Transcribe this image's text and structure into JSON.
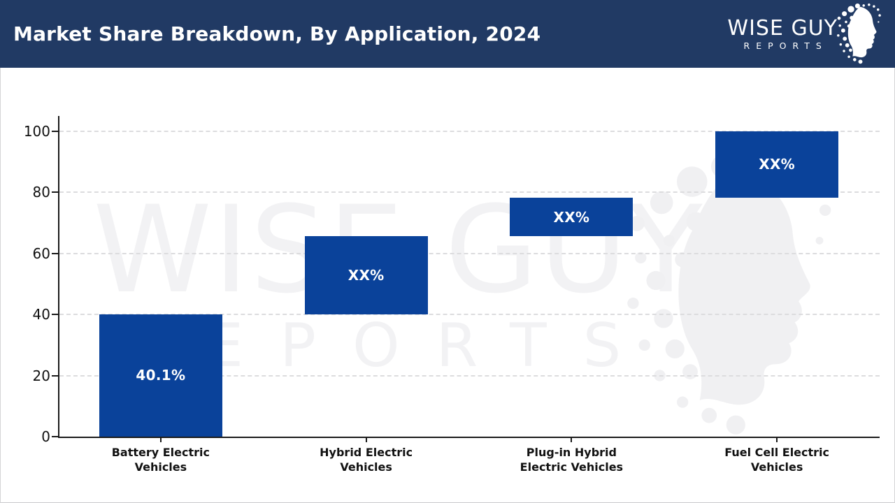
{
  "header": {
    "title": "Market Share Breakdown, By Application, 2024",
    "logo": {
      "line1": "WISE GUY",
      "line2": "REPORTS"
    }
  },
  "watermark": {
    "line1": "WISE GUY",
    "line2": "REPORTS"
  },
  "chart_data": {
    "type": "bar",
    "subtype": "waterfall",
    "title": "Market Share Breakdown, By Application, 2024",
    "xlabel": "",
    "ylabel": "",
    "ylim": [
      0,
      105
    ],
    "yticks": [
      0,
      20,
      40,
      60,
      80,
      100
    ],
    "grid": "dashed-horizontal",
    "legend": "none",
    "bar_color": "#0A429A",
    "bar_label_color": "#ffffff",
    "categories": [
      [
        "Battery Electric",
        "Vehicles"
      ],
      [
        "Hybrid Electric",
        "Vehicles"
      ],
      [
        "Plug-in Hybrid",
        "Electric Vehicles"
      ],
      [
        "Fuel Cell Electric",
        "Vehicles"
      ]
    ],
    "segments": [
      {
        "start": 0,
        "end": 40.1,
        "value": 40.1,
        "label": "40.1%"
      },
      {
        "start": 40.1,
        "end": 65.6,
        "value": 25.5,
        "label": "XX%"
      },
      {
        "start": 65.6,
        "end": 78.1,
        "value": 12.5,
        "label": "XX%"
      },
      {
        "start": 78.1,
        "end": 100,
        "value": 21.9,
        "label": "XX%"
      }
    ]
  }
}
